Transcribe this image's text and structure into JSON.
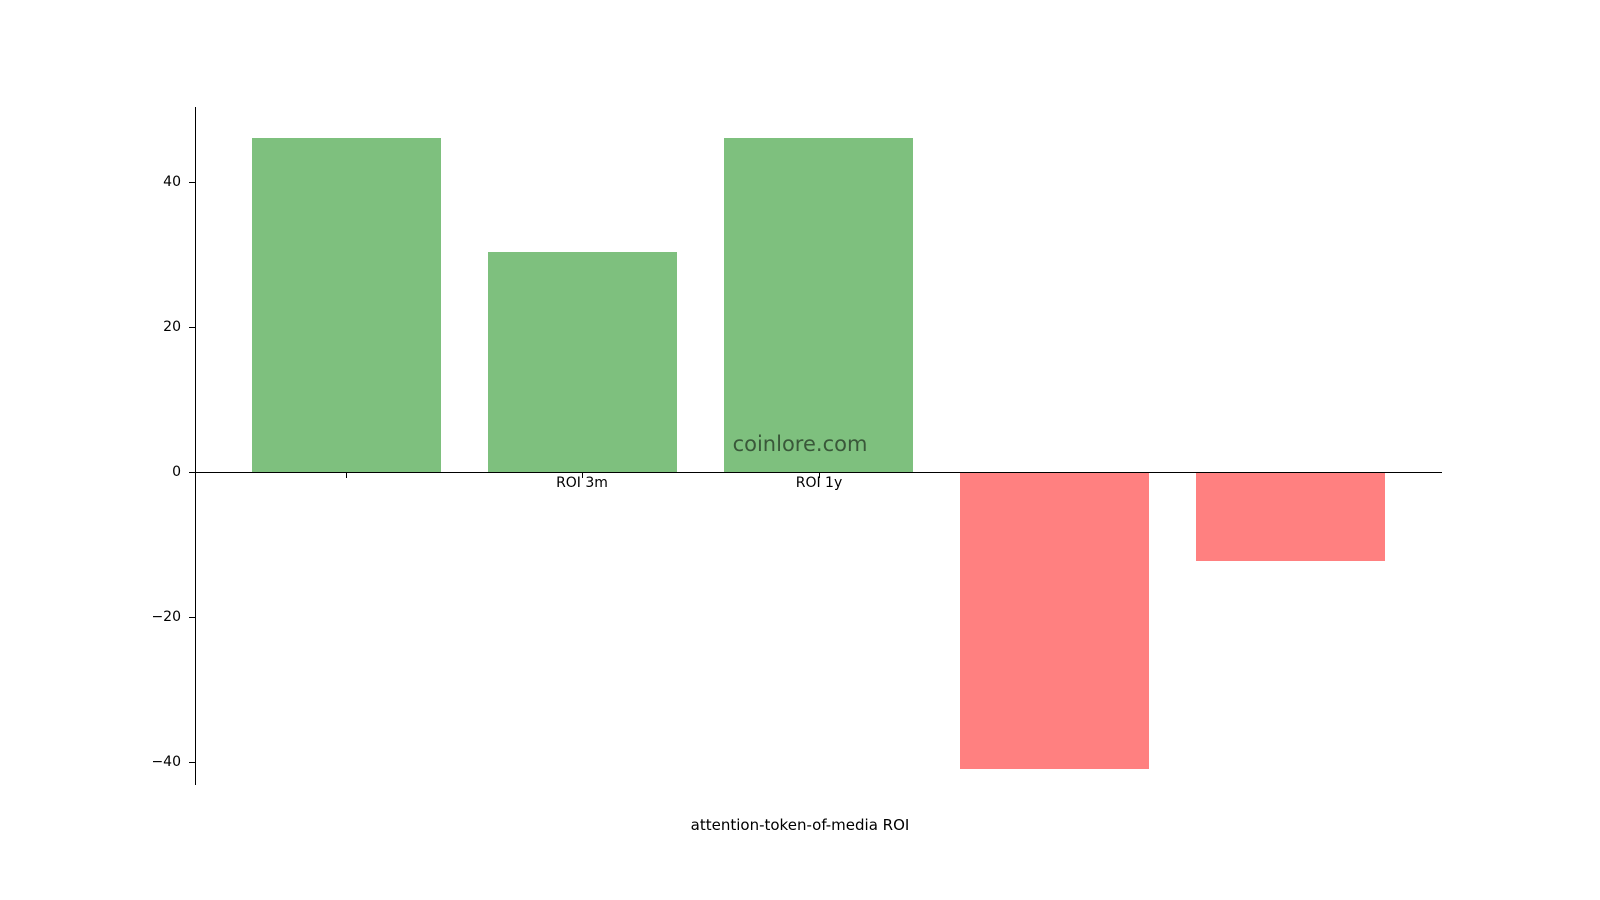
{
  "chart_data": {
    "type": "bar",
    "categories": [
      "",
      "ROI 3m",
      "ROI 1y",
      "",
      ""
    ],
    "values": [
      46.1,
      30.4,
      46.1,
      -40.9,
      -12.1
    ],
    "title": "",
    "xlabel": "attention-token-of-media ROI",
    "ylabel": "",
    "ylim": [
      -43.2,
      50.4
    ],
    "yticks": [
      40,
      20,
      0,
      -20,
      -40
    ],
    "ytick_labels": [
      "40",
      "20",
      "0",
      "−20",
      "−40"
    ],
    "grid": false,
    "legend_position": "none",
    "colors": {
      "positive_bar": "#7ec07e",
      "negative_bar": "#ff8080",
      "axis": "#000000",
      "tick_text": "#000000"
    },
    "watermark": "coinlore.com"
  }
}
